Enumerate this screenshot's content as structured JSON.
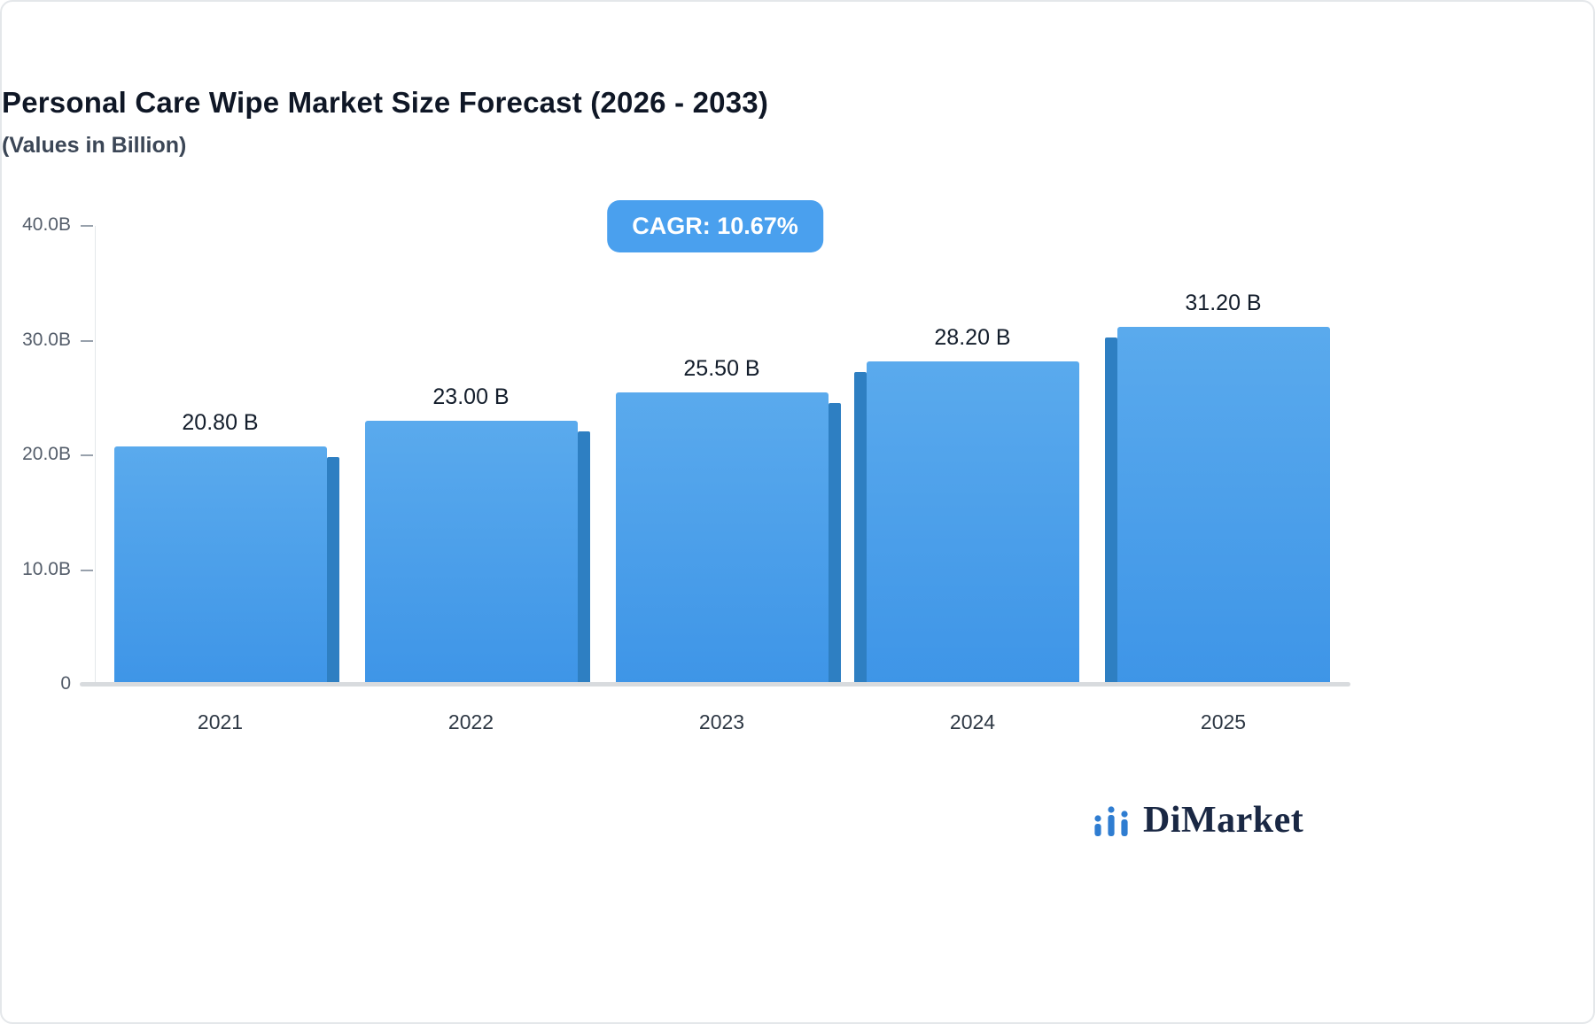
{
  "header": {
    "title": "Personal Care Wipe Market Size Forecast (2026 - 2033)",
    "subtitle": "(Values in Billion)",
    "cagr_badge": "CAGR: 10.67%"
  },
  "chart_data": {
    "type": "bar",
    "categories": [
      "2021",
      "2022",
      "2023",
      "2024",
      "2025"
    ],
    "values": [
      20.8,
      23.0,
      25.5,
      28.2,
      31.2
    ],
    "value_labels": [
      "20.80 B",
      "23.00 B",
      "25.50 B",
      "28.20 B",
      "31.20 B"
    ],
    "title": "Personal Care Wipe Market Size Forecast (2026 - 2033)",
    "subtitle": "(Values in Billion)",
    "xlabel": "",
    "ylabel": "",
    "ylim": [
      0,
      40
    ],
    "y_ticks": [
      "40.0B",
      "30.0B",
      "20.0B",
      "10.0B",
      "0"
    ],
    "grid": false,
    "legend": "none",
    "bar_color_top": "#5aaaed",
    "bar_color_bottom": "#3e95e7",
    "bar_side_color": "#2e7fc2",
    "badge_color": "#4aa0ee"
  },
  "footer": {
    "logo_text": "DiMarket",
    "logo_icon": "bar-chart-icon",
    "logo_color": "#2f7dd1"
  }
}
